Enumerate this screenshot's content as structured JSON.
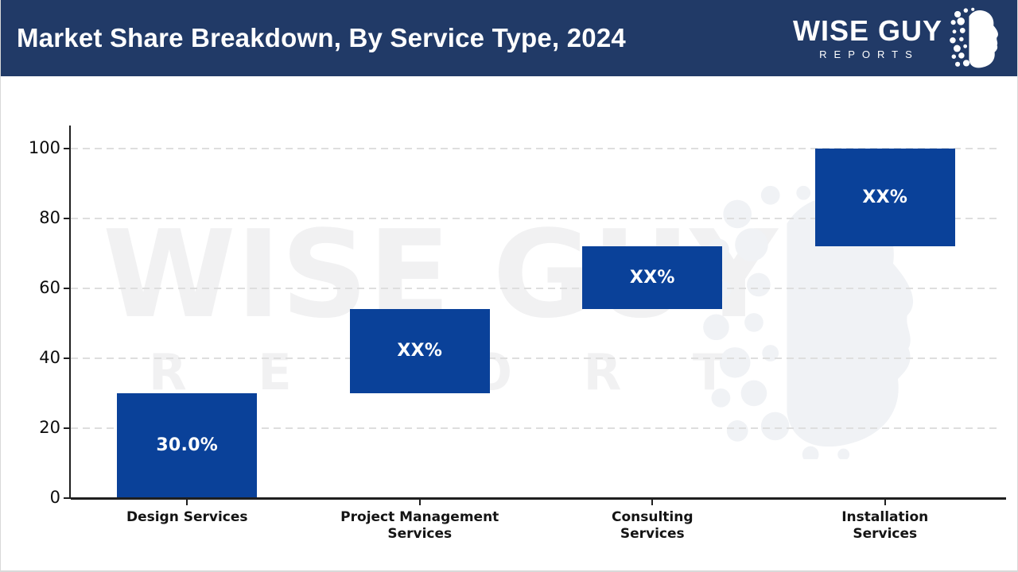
{
  "header": {
    "title": "Market Share Breakdown, By Service Type, 2024",
    "logo": {
      "line1": "WISE GUY",
      "line2": "REPORTS"
    }
  },
  "watermark": {
    "line1": "WISE GUY",
    "line2": "REPORTS"
  },
  "colors": {
    "header_bg": "#213A67",
    "bar": "#0A4199",
    "bar_label": "#FFFFFF",
    "gridline": "#DEDEDE",
    "axis": "#1F1F1F",
    "watermark": "#F1F1F2"
  },
  "chart_data": {
    "type": "bar",
    "subtype": "waterfall",
    "title": "Market Share Breakdown, By Service Type, 2024",
    "categories": [
      "Design Services",
      "Project Management\nServices",
      "Consulting\nServices",
      "Installation\nServices"
    ],
    "bars": [
      {
        "category": "Design Services",
        "start": 0,
        "end": 30,
        "value": 30,
        "label": "30.0%"
      },
      {
        "category": "Project Management Services",
        "start": 30,
        "end": 54,
        "value": 24,
        "label": "XX%"
      },
      {
        "category": "Consulting Services",
        "start": 54,
        "end": 72,
        "value": 18,
        "label": "XX%"
      },
      {
        "category": "Installation Services",
        "start": 72,
        "end": 100,
        "value": 28,
        "label": "XX%"
      }
    ],
    "xlabel": "",
    "ylabel": "",
    "ylim": [
      0,
      100
    ],
    "yticks": [
      0,
      20,
      40,
      60,
      80,
      100
    ],
    "grid": "horizontal-dashed",
    "legend": "none",
    "bar_color": "#0A4199"
  }
}
